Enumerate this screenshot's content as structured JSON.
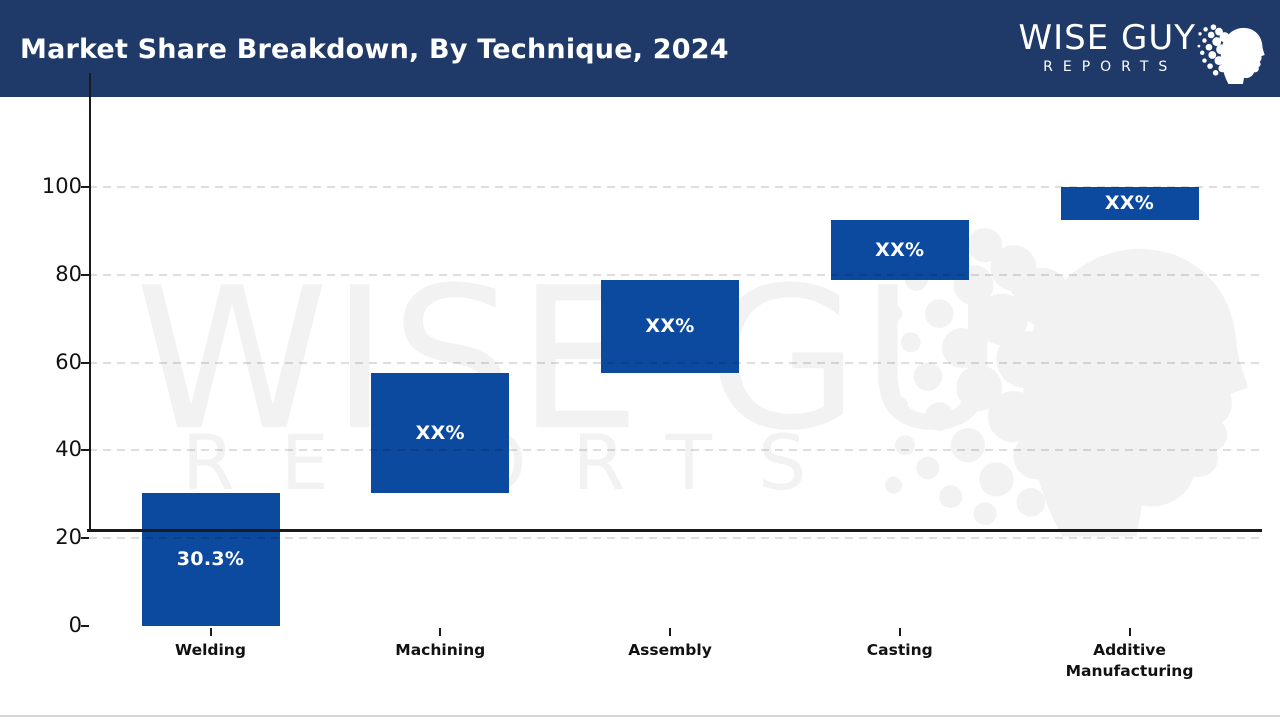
{
  "header": {
    "title": "Market Share Breakdown, By Technique, 2024",
    "logo": {
      "brand": "WISE GUY",
      "sub": "REPORTS"
    }
  },
  "watermark": {
    "brand": "WISE GUY",
    "sub": "REPORTS"
  },
  "colors": {
    "header_bg": "#1f3a68",
    "bar": "#0b4a9f",
    "bar_label": "#ffffff",
    "axis": "#1a1a1a",
    "watermark": "#f2f2f2"
  },
  "chart_data": {
    "type": "bar",
    "subtype": "waterfall",
    "title": "Market Share Breakdown, By Technique, 2024",
    "xlabel": "",
    "ylabel": "",
    "ylim": [
      0,
      104
    ],
    "yticks": [
      0,
      20,
      40,
      60,
      80,
      100
    ],
    "grid": "horizontal-dashed",
    "legend": "none",
    "categories": [
      "Welding",
      "Machining",
      "Assembly",
      "Casting",
      "Additive Manufacturing"
    ],
    "segments": [
      {
        "category": "Welding",
        "start": 0,
        "end": 30.3,
        "label": "30.3%"
      },
      {
        "category": "Machining",
        "start": 30.3,
        "end": 57.6,
        "label": "XX%"
      },
      {
        "category": "Assembly",
        "start": 57.6,
        "end": 78.9,
        "label": "XX%"
      },
      {
        "category": "Casting",
        "start": 78.9,
        "end": 92.5,
        "label": "XX%"
      },
      {
        "category": "Additive Manufacturing",
        "start": 92.5,
        "end": 100,
        "label": "XX%"
      }
    ]
  }
}
